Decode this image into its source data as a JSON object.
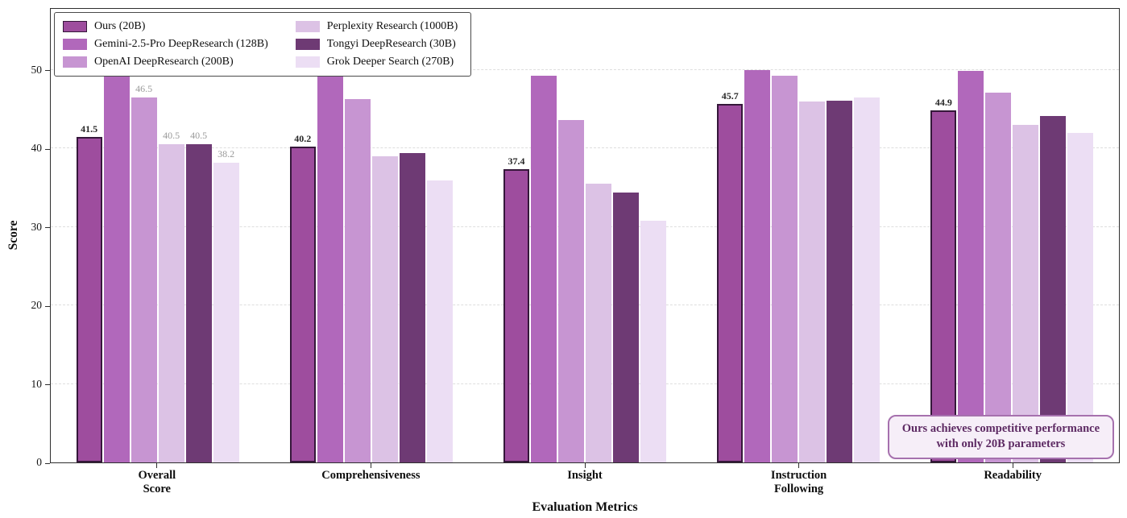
{
  "chart_data": {
    "type": "bar",
    "title": "",
    "xlabel": "Evaluation Metrics",
    "ylabel": "Score",
    "ylim": [
      0,
      58
    ],
    "yticks": [
      0,
      10,
      20,
      30,
      40,
      50
    ],
    "grid": "dashed-horizontal",
    "legend_position": "upper-left",
    "legend_order": [
      0,
      3,
      1,
      4,
      2,
      5
    ],
    "categories": [
      [
        "Overall",
        "Score"
      ],
      [
        "Comprehensiveness"
      ],
      [
        "Insight"
      ],
      [
        "Instruction",
        "Following"
      ],
      [
        "Readability"
      ]
    ],
    "series": [
      {
        "name": "Ours (20B)",
        "color": "#9e4d9e",
        "edge": "#35173a",
        "values": [
          41.5,
          40.2,
          37.4,
          45.7,
          44.9
        ],
        "labels": [
          "41.5",
          "40.2",
          "37.4",
          "45.7",
          "44.9"
        ]
      },
      {
        "name": "Gemini-2.5-Pro DeepResearch (128B)",
        "color": "#b168bb",
        "values": [
          49.6,
          49.4,
          49.3,
          50.0,
          49.9
        ],
        "labels": [
          "",
          "",
          "",
          "",
          ""
        ]
      },
      {
        "name": "OpenAI DeepResearch (200B)",
        "color": "#c795d2",
        "values": [
          46.5,
          46.3,
          43.6,
          49.3,
          47.1
        ],
        "labels": [
          "46.5",
          "",
          "",
          "",
          ""
        ]
      },
      {
        "name": "Perplexity Research (1000B)",
        "color": "#dcc2e5",
        "values": [
          40.5,
          39.0,
          35.5,
          46.0,
          43.0
        ],
        "labels": [
          "40.5",
          "",
          "",
          "",
          ""
        ]
      },
      {
        "name": "Tongyi DeepResearch (30B)",
        "color": "#6e3a74",
        "values": [
          40.5,
          39.4,
          34.4,
          46.1,
          44.1
        ],
        "labels": [
          "40.5",
          "",
          "",
          "",
          ""
        ]
      },
      {
        "name": "Grok Deeper Search (270B)",
        "color": "#ecdef4",
        "values": [
          38.2,
          35.9,
          30.8,
          46.5,
          42.0
        ],
        "labels": [
          "38.2",
          "",
          "",
          "",
          ""
        ]
      }
    ],
    "annotation_lines": [
      "Ours achieves competitive performance",
      "with only 20B parameters"
    ]
  }
}
